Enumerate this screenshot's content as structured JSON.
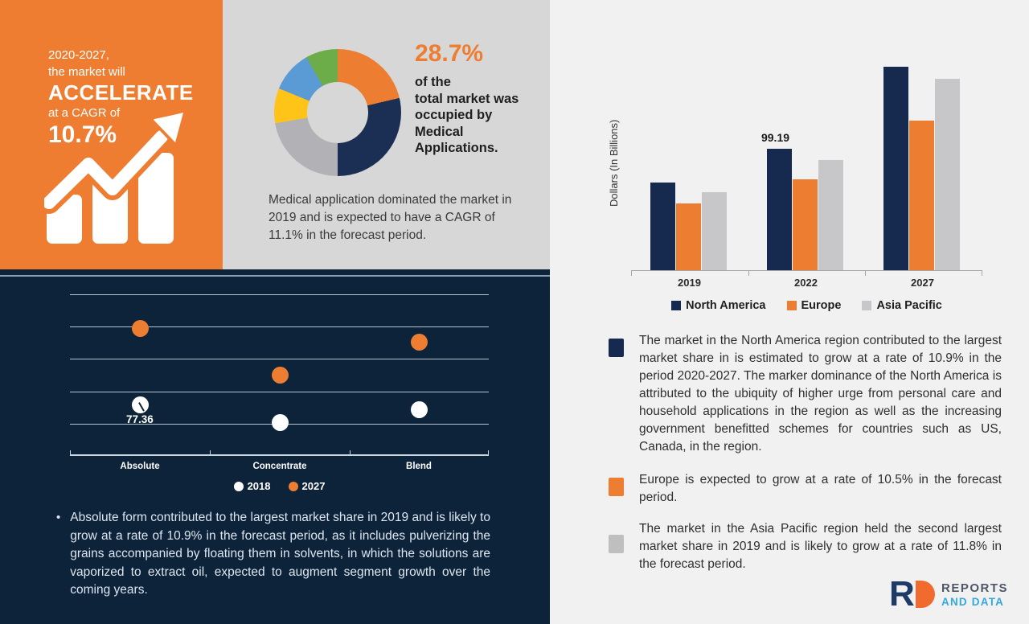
{
  "colors": {
    "orange": "#ED7D31",
    "navy_panel": "#0D2339",
    "navy_bar": "#152A4E",
    "donut_navy": "#1B2F54",
    "gray_panel": "#D7D7D7",
    "right_background": "#F1F1F2",
    "bar_gray": "#C7C7C9",
    "yellow": "#FFC417",
    "blue": "#5B9BD5",
    "green": "#6CAD49",
    "logo_cyan": "#35A8DC",
    "logo_slate": "#4D5766",
    "logo_navy": "#1E3A66",
    "logo_orange": "#F26B2E"
  },
  "cagr_card": {
    "period": "2020-2027,",
    "line2": "the market will",
    "headline": "ACCELERATE",
    "line4": "at a CAGR of",
    "cagr_value": "10.7%"
  },
  "medical_card": {
    "stat": "28.7%",
    "stat_lines": [
      "of the",
      "total market was",
      "occupied by",
      "Medical",
      "Applications."
    ],
    "caption": "Medical application dominated the market in 2019 and is expected to have a CAGR of 11.1% in the forecast period."
  },
  "form_note": {
    "bullet": "•",
    "text": "Absolute form contributed to the largest market share in 2019 and is likely to grow at a rate of 10.9% in the forecast period, as it includes pulverizing the grains accompanied by floating them in solvents, in which the solutions are vaporized to extract oil, expected to augment segment growth over the coming years."
  },
  "region_notes": [
    {
      "swatch": "#152A4E",
      "text": "The market in the North America region contributed to the largest market share in is estimated to grow at a rate of 10.9% in the period 2020-2027. The marker dominance of the North America is attributed to the ubiquity of higher urge from personal care and household applications in the region as well as the increasing government benefitted schemes for countries such as US, Canada, in the region."
    },
    {
      "swatch": "#ED7D31",
      "text": "Europe is expected to grow at a rate of 10.5% in the forecast period."
    },
    {
      "swatch": "#BFBFBF",
      "text": "The market in the Asia Pacific region held the second largest market share in 2019 and is likely to grow at a rate of 11.8% in the forecast period."
    }
  ],
  "logo": {
    "mark_r": "R",
    "reports": "REPORTS",
    "and_data": "AND DATA"
  },
  "chart_data": [
    {
      "type": "pie",
      "style": "donut",
      "segments": [
        {
          "label": "",
          "value": 21.3,
          "color": "#ED7D31"
        },
        {
          "label": "Medical Applications",
          "value": 28.7,
          "color": "#1B2F54"
        },
        {
          "label": "",
          "value": 22.3,
          "color": "#B2B2B6"
        },
        {
          "label": "",
          "value": 8.9,
          "color": "#FFC417"
        },
        {
          "label": "",
          "value": 10.6,
          "color": "#5B9BD5"
        },
        {
          "label": "",
          "value": 8.2,
          "color": "#6CAD49"
        }
      ]
    },
    {
      "type": "scatter",
      "categories": [
        "Absolute",
        "Concentrate",
        "Blend"
      ],
      "series": [
        {
          "name": "2018",
          "color": "#FFFFFF",
          "values": [
            77.36,
            50,
            70
          ]
        },
        {
          "name": "2027",
          "color": "#ED7D31",
          "values": [
            192,
            122,
            172
          ]
        }
      ],
      "labeled_point": {
        "category_index": 0,
        "series_index": 0,
        "value": 77.36,
        "text": "77.36"
      },
      "ylim": [
        0,
        244
      ],
      "grid": true,
      "legend_position": "bottom"
    },
    {
      "type": "bar",
      "categories": [
        "2019",
        "2022",
        "2027"
      ],
      "series": [
        {
          "name": "North America",
          "color": "#152A4E",
          "values": [
            71.5,
            99.19,
            166.1
          ]
        },
        {
          "name": "Europe",
          "color": "#ED7D31",
          "values": [
            54.4,
            74.3,
            122.1
          ]
        },
        {
          "name": "Asia Pacific",
          "color": "#C7C7C9",
          "values": [
            63.6,
            89.8,
            155.8
          ]
        }
      ],
      "ylabel": "Dollars (In Billions)",
      "ylim": [
        0,
        180
      ],
      "legend_position": "bottom",
      "data_label": {
        "category_index": 1,
        "series_index": 0,
        "text": "99.19"
      }
    }
  ]
}
